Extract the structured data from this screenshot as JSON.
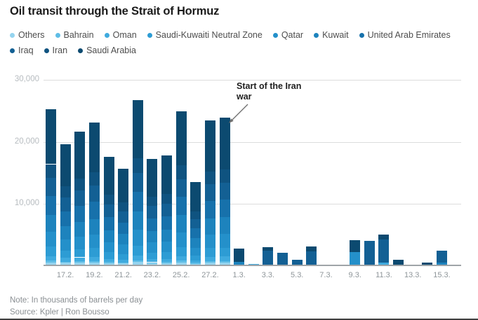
{
  "title": "Oil transit through the Strait of Hormuz",
  "note": "Note: In thousands of barrels per day",
  "source": "Source: Kpler | Ron Bousso",
  "annotation": {
    "line1": "Start of the Iran",
    "line2": "war"
  },
  "y_axis": {
    "ticks": [
      {
        "label": "30,000",
        "value": 30000
      },
      {
        "label": "20,000",
        "value": 20000
      },
      {
        "label": "10,000",
        "value": 10000
      }
    ],
    "max": 30000
  },
  "chart_data": {
    "type": "bar",
    "stacked": true,
    "title": "Oil transit through the Strait of Hormuz",
    "xlabel": "",
    "ylabel": "thousands of barrels per day",
    "ylim": [
      0,
      30000
    ],
    "grid": true,
    "legend_position": "top",
    "annotation": "Start of the Iran war (pointing at bar 28.2.)",
    "categories": [
      "16.2.",
      "17.2.",
      "18.2.",
      "19.2.",
      "20.2.",
      "21.2.",
      "22.2.",
      "23.2.",
      "24.2.",
      "25.2.",
      "26.2.",
      "27.2.",
      "28.2.",
      "1.3.",
      "2.3.",
      "3.3.",
      "4.3.",
      "5.3.",
      "6.3.",
      "7.3.",
      "8.3.",
      "9.3.",
      "10.3.",
      "11.3.",
      "12.3.",
      "13.3.",
      "14.3.",
      "15.3."
    ],
    "x_tick_labels": [
      "17.2.",
      "19.2.",
      "21.2.",
      "23.2.",
      "25.2.",
      "27.2.",
      "1.3.",
      "3.3.",
      "5.3.",
      "7.3.",
      "9.3.",
      "11.3.",
      "13.3.",
      "15.3."
    ],
    "totals": [
      25100,
      19500,
      21500,
      23000,
      17500,
      15600,
      26600,
      17100,
      17700,
      24800,
      13400,
      23300,
      23800,
      2700,
      250,
      2900,
      2000,
      850,
      3000,
      0,
      0,
      4100,
      3900,
      4950,
      950,
      0,
      400,
      2400
    ],
    "series": [
      {
        "name": "Others",
        "color": "#95d4ef",
        "values": [
          500,
          400,
          450,
          450,
          350,
          300,
          530,
          340,
          350,
          500,
          270,
          470,
          480,
          0,
          0,
          0,
          0,
          0,
          0,
          0,
          0,
          0,
          0,
          0,
          0,
          0,
          0,
          0
        ]
      },
      {
        "name": "Bahrain",
        "color": "#5fbde6",
        "values": [
          250,
          200,
          200,
          230,
          175,
          150,
          270,
          170,
          180,
          250,
          130,
          230,
          240,
          0,
          0,
          0,
          0,
          0,
          0,
          0,
          0,
          0,
          0,
          0,
          0,
          0,
          0,
          0
        ]
      },
      {
        "name": "Oman",
        "color": "#3faade",
        "values": [
          750,
          600,
          650,
          700,
          525,
          470,
          800,
          510,
          530,
          740,
          400,
          700,
          710,
          0,
          250,
          0,
          0,
          0,
          0,
          0,
          0,
          0,
          0,
          500,
          0,
          0,
          0,
          0
        ]
      },
      {
        "name": "Saudi-Kuwaiti Neutral Zone",
        "color": "#2d9cd4",
        "values": [
          1500,
          1150,
          1300,
          1400,
          1050,
          940,
          1600,
          1030,
          1060,
          1490,
          800,
          1400,
          1430,
          0,
          0,
          0,
          0,
          0,
          0,
          0,
          0,
          0,
          0,
          0,
          0,
          0,
          0,
          0
        ]
      },
      {
        "name": "Qatar",
        "color": "#2490ca",
        "values": [
          2400,
          1850,
          2050,
          2200,
          1650,
          1480,
          2530,
          1620,
          1680,
          2360,
          1270,
          2210,
          2260,
          0,
          0,
          0,
          0,
          0,
          0,
          0,
          0,
          2100,
          0,
          0,
          0,
          0,
          0,
          0
        ]
      },
      {
        "name": "Kuwait",
        "color": "#1d83bd",
        "values": [
          2750,
          2150,
          2350,
          2500,
          1925,
          1720,
          2930,
          1880,
          1950,
          2730,
          1475,
          2560,
          2620,
          600,
          0,
          0,
          0,
          0,
          0,
          0,
          0,
          0,
          0,
          0,
          0,
          0,
          0,
          400
        ]
      },
      {
        "name": "United Arab Emirates",
        "color": "#1771ab",
        "values": [
          3000,
          2350,
          2600,
          2750,
          2100,
          1870,
          3190,
          2050,
          2120,
          2980,
          1610,
          2800,
          2860,
          0,
          0,
          0,
          0,
          0,
          0,
          0,
          0,
          0,
          0,
          0,
          0,
          0,
          0,
          0
        ]
      },
      {
        "name": "Iraq",
        "color": "#136094",
        "values": [
          2900,
          2250,
          2450,
          2650,
          2000,
          1790,
          3060,
          1970,
          2040,
          2850,
          1540,
          2680,
          2740,
          0,
          0,
          2400,
          2000,
          850,
          2300,
          0,
          0,
          0,
          3900,
          3700,
          0,
          0,
          0,
          2000
        ]
      },
      {
        "name": "Iran",
        "color": "#0f5380",
        "values": [
          2250,
          1750,
          1950,
          2070,
          1575,
          1400,
          2390,
          1540,
          1590,
          2230,
          1205,
          2100,
          2140,
          0,
          0,
          0,
          0,
          0,
          0,
          0,
          0,
          0,
          0,
          0,
          0,
          0,
          0,
          0
        ]
      },
      {
        "name": "Saudi Arabia",
        "color": "#0c4a70",
        "values": [
          8800,
          6800,
          7500,
          8050,
          6150,
          5480,
          9300,
          5990,
          6200,
          8670,
          4700,
          8150,
          8320,
          2100,
          0,
          500,
          0,
          0,
          700,
          0,
          0,
          2000,
          0,
          750,
          950,
          0,
          400,
          0
        ]
      }
    ]
  }
}
